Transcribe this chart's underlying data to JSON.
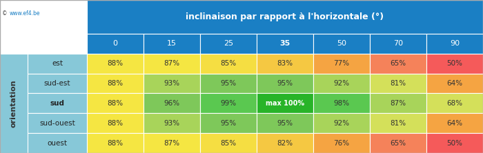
{
  "title": "inclinaison par rapport à l'horizontale (°)",
  "col_headers": [
    "0",
    "15",
    "25",
    "35",
    "50",
    "70",
    "90"
  ],
  "row_headers": [
    "est",
    "sud-est",
    "sud",
    "sud-ouest",
    "ouest"
  ],
  "orientation_label": "orientation",
  "copyright_symbol": "©",
  "copyright_link": "www.ef4.be",
  "cells": [
    [
      "88%",
      "87%",
      "85%",
      "83%",
      "77%",
      "65%",
      "50%"
    ],
    [
      "88%",
      "93%",
      "95%",
      "95%",
      "92%",
      "81%",
      "64%"
    ],
    [
      "88%",
      "96%",
      "99%",
      "max 100%",
      "98%",
      "87%",
      "68%"
    ],
    [
      "88%",
      "93%",
      "95%",
      "95%",
      "92%",
      "81%",
      "64%"
    ],
    [
      "88%",
      "87%",
      "85%",
      "82%",
      "76%",
      "65%",
      "50%"
    ]
  ],
  "cell_colors": [
    [
      "#f5e642",
      "#f5e642",
      "#f5de42",
      "#f5c842",
      "#f5a442",
      "#f5825a",
      "#f55a5a"
    ],
    [
      "#f5e642",
      "#a8d45a",
      "#7ec85a",
      "#7ec85a",
      "#a8d45a",
      "#d4e05a",
      "#f5a442"
    ],
    [
      "#f5e642",
      "#7ec85a",
      "#5ac850",
      "#28b428",
      "#5ac850",
      "#a8d45a",
      "#d4e05a"
    ],
    [
      "#f5e642",
      "#a8d45a",
      "#7ec85a",
      "#7ec85a",
      "#a8d45a",
      "#d4e05a",
      "#f5a442"
    ],
    [
      "#f5e642",
      "#f5e642",
      "#f5de42",
      "#f5c842",
      "#f5a442",
      "#f5825a",
      "#f55a5a"
    ]
  ],
  "header_bg": "#1a7fc4",
  "header_text_color": "#ffffff",
  "left_panel_bg": "#87c8d8",
  "left_top_bg": "#ffffff",
  "bold_col": 3,
  "bold_row": 2,
  "special_cell": [
    2,
    3
  ],
  "special_cell_text_color": "#ffffff"
}
